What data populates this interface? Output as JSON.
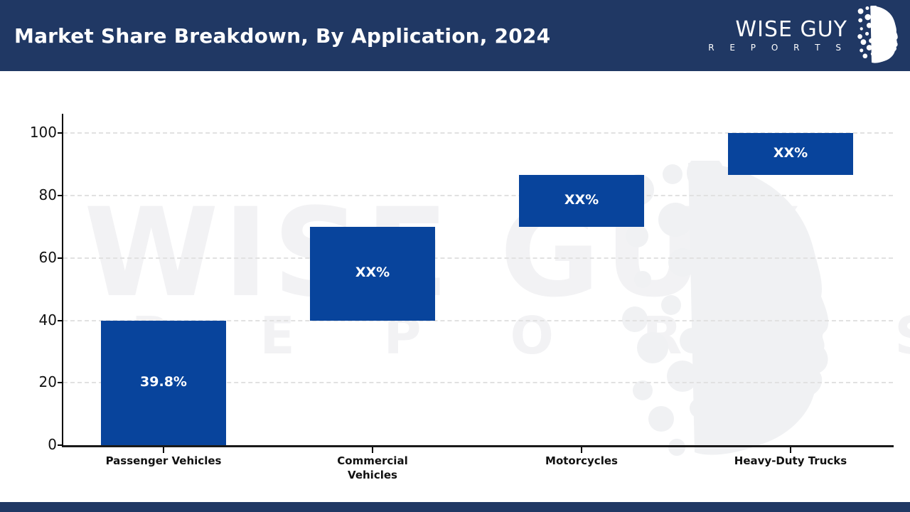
{
  "header": {
    "title": "Market Share Breakdown, By Application, 2024",
    "logo": {
      "name": "WISE GUY",
      "sub": "R E P O R T S"
    }
  },
  "watermark": {
    "big": "WISE GUY",
    "sub": "R E P O R T S"
  },
  "footer": {
    "text": ""
  },
  "chart_data": {
    "type": "bar",
    "subtype": "floating-waterfall",
    "title": "Market Share Breakdown, By Application, 2024",
    "categories": [
      "Passenger Vehicles",
      "Commercial Vehicles",
      "Motorcycles",
      "Heavy-Duty Trucks"
    ],
    "category_label_lines": [
      [
        "Passenger Vehicles"
      ],
      [
        "Commercial",
        "Vehicles"
      ],
      [
        "Motorcycles"
      ],
      [
        "Heavy-Duty Trucks"
      ]
    ],
    "segments": [
      {
        "category": "Passenger Vehicles",
        "start": 0,
        "end": 39.8,
        "label": "39.8%"
      },
      {
        "category": "Commercial Vehicles",
        "start": 40,
        "end": 70,
        "label": "XX%"
      },
      {
        "category": "Motorcycles",
        "start": 70,
        "end": 86.6,
        "label": "XX%"
      },
      {
        "category": "Heavy-Duty Trucks",
        "start": 86.6,
        "end": 100,
        "label": "XX%"
      }
    ],
    "ylim": [
      0,
      100
    ],
    "yticks": [
      0,
      20,
      40,
      60,
      80,
      100
    ],
    "xlabel": "",
    "ylabel": "",
    "grid": "horizontal-dashed",
    "legend": "none",
    "bar_color": "#08449c",
    "bar_label_color": "#ffffff"
  },
  "colors": {
    "header_bg": "#203864",
    "footer_bg": "#203864",
    "bar": "#08449c",
    "grid": "#e1e1e1",
    "axis": "#000000",
    "watermark": "#f2f2f4"
  }
}
